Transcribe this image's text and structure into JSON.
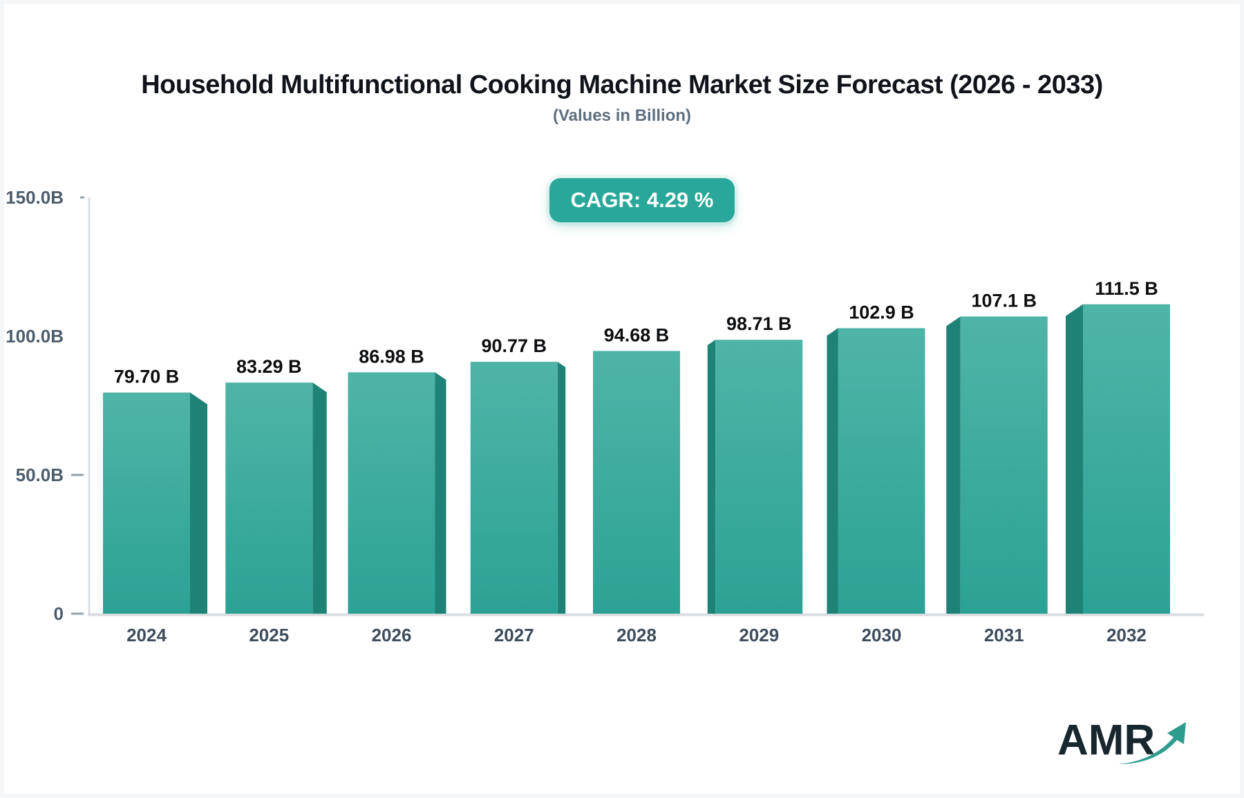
{
  "header": {
    "title": "Household Multifunctional Cooking Machine Market Size Forecast (2026 - 2033)",
    "subtitle": "(Values in Billion)"
  },
  "badge": {
    "label": "CAGR: 4.29 %",
    "background": "#2aa79b",
    "text_color": "#ffffff"
  },
  "chart_data": {
    "type": "bar",
    "title": "Household Multifunctional Cooking Machine Market Size Forecast (2026 - 2033)",
    "subtitle": "(Values in Billion)",
    "cagr": "4.29 %",
    "categories": [
      "2024",
      "2025",
      "2026",
      "2027",
      "2028",
      "2029",
      "2030",
      "2031",
      "2032"
    ],
    "values": [
      79.7,
      83.29,
      86.98,
      90.77,
      94.68,
      98.71,
      102.9,
      107.1,
      111.5
    ],
    "value_labels": [
      "79.70 B",
      "83.29 B",
      "86.98 B",
      "90.77 B",
      "94.68 B",
      "98.71 B",
      "102.9 B",
      "107.1 B",
      "111.5 B"
    ],
    "xlabel": "",
    "ylabel": "",
    "ylim": [
      0,
      150
    ],
    "yticks": [
      {
        "value": 150,
        "label": "150.0B",
        "tick": "dot"
      },
      {
        "value": 100,
        "label": "100.0B",
        "tick": "none"
      },
      {
        "value": 50,
        "label": "50.0B",
        "tick": "dash"
      },
      {
        "value": 0,
        "label": "0",
        "tick": "dash"
      }
    ],
    "grid": false,
    "legend_position": "none",
    "bar_style_3d": true,
    "colors": {
      "bar_face_top": "#4fb4a8",
      "bar_face_bottom": "#2ba295",
      "bar_side": "#1f8276",
      "axis": "#d9dde2",
      "tick": "#94a0ab",
      "value_label": "#0d0e10",
      "year_label": "#3e4c5b",
      "ytick_label": "#4d5c6b"
    }
  },
  "logo": {
    "text": "AMR",
    "text_color": "#18262e",
    "arrow_color": "#2e9b8f"
  }
}
